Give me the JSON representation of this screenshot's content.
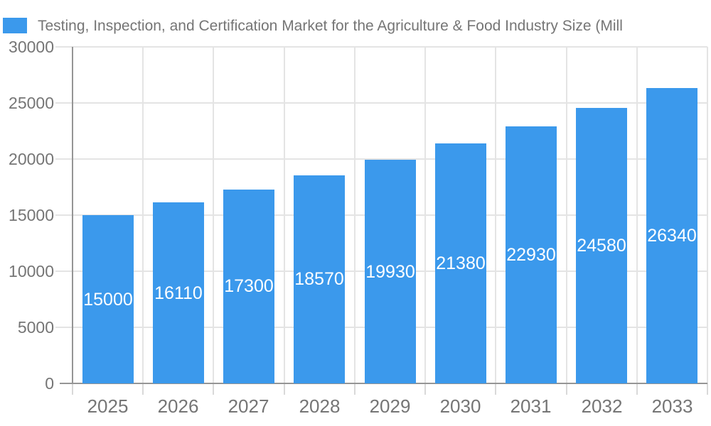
{
  "chart_data": {
    "type": "bar",
    "title": "Testing, Inspection, and Certification Market for the Agriculture & Food Industry Size (Mill",
    "categories": [
      "2025",
      "2026",
      "2027",
      "2028",
      "2029",
      "2030",
      "2031",
      "2032",
      "2033"
    ],
    "series": [
      {
        "name": "Testing, Inspection, and Certification Market for the Agriculture & Food Industry Size (Mill",
        "values": [
          15000,
          16110,
          17300,
          18570,
          19930,
          21380,
          22930,
          24580,
          26340
        ]
      }
    ],
    "value_labels": [
      "15000",
      "16110",
      "17300",
      "18570",
      "19930",
      "21380",
      "22930",
      "24580",
      "26340"
    ],
    "xlabel": "",
    "ylabel": "",
    "ylim": [
      0,
      30000
    ],
    "y_ticks": [
      0,
      5000,
      10000,
      15000,
      20000,
      25000,
      30000
    ],
    "grid": true,
    "legend_position": "top-left",
    "colors": {
      "bar": "#3B99EC",
      "bar_label_text": "#FFFFFF",
      "axis_text": "#757575",
      "axis_line": "#959595",
      "gridline": "#E4E4E4",
      "tick": "#D9D9D9",
      "background": "#FFFFFF"
    }
  }
}
